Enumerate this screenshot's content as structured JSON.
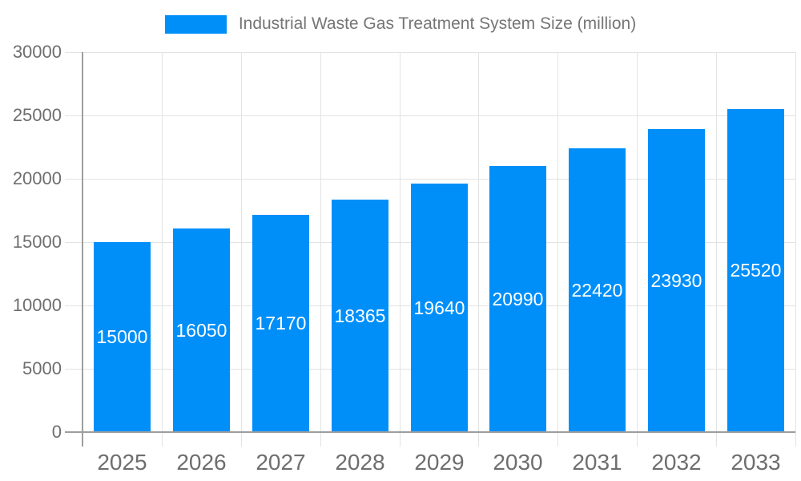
{
  "legend": {
    "label": "Industrial Waste Gas Treatment System Size (million)"
  },
  "colors": {
    "bar": "#008FF9",
    "grid": "#e3e3e3",
    "axis_line": "#9e9e9e",
    "axis_label": "#6e6e6e",
    "value_label": "#ffffff"
  },
  "chart_data": {
    "type": "bar",
    "title": "Industrial Waste Gas Treatment System Size (million)",
    "categories": [
      "2025",
      "2026",
      "2027",
      "2028",
      "2029",
      "2030",
      "2031",
      "2032",
      "2033"
    ],
    "values": [
      15000,
      16050,
      17170,
      18365,
      19640,
      20990,
      22420,
      23930,
      25520
    ],
    "xlabel": "",
    "ylabel": "",
    "ylim": [
      0,
      30000
    ],
    "yticks": [
      0,
      5000,
      10000,
      15000,
      20000,
      25000,
      30000
    ],
    "grid": true,
    "legend_position": "top",
    "value_labels": "inside-center"
  }
}
